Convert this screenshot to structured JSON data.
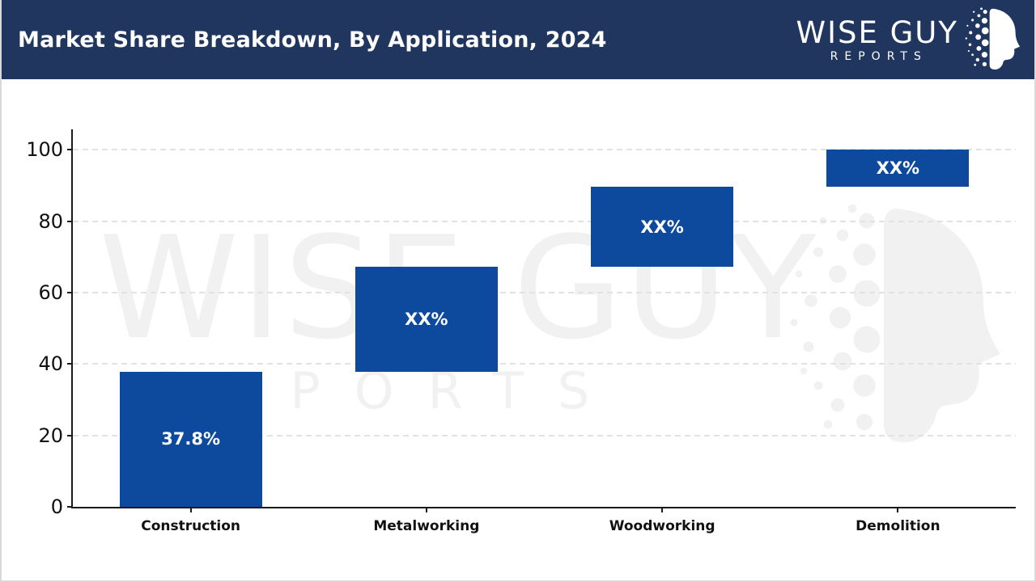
{
  "header": {
    "title": "Market Share Breakdown, By Application, 2024",
    "background_color": "#21365F"
  },
  "logo": {
    "line1": "WISE GUY",
    "line2": "REPORTS"
  },
  "watermark": {
    "line1": "WISE GUY",
    "line2": "REPORTS"
  },
  "chart_data": {
    "type": "bar",
    "subtype": "waterfall",
    "title": "Market Share Breakdown, By Application, 2024",
    "categories": [
      "Construction",
      "Metalworking",
      "Woodworking",
      "Demolition"
    ],
    "bars": [
      {
        "category": "Construction",
        "start": 0,
        "end": 37.8,
        "label": "37.8%"
      },
      {
        "category": "Metalworking",
        "start": 37.8,
        "end": 67.2,
        "label": "XX%"
      },
      {
        "category": "Woodworking",
        "start": 67.2,
        "end": 89.6,
        "label": "XX%"
      },
      {
        "category": "Demolition",
        "start": 89.6,
        "end": 100,
        "label": "XX%"
      }
    ],
    "yticks": [
      0,
      20,
      40,
      60,
      80,
      100
    ],
    "ylim": [
      0,
      105.7
    ],
    "grid": "horizontal-dashed",
    "legend": "none",
    "bar_color": "#0D4A9E",
    "bar_label_color": "#FFFFFF",
    "xlabel": "",
    "ylabel": ""
  }
}
